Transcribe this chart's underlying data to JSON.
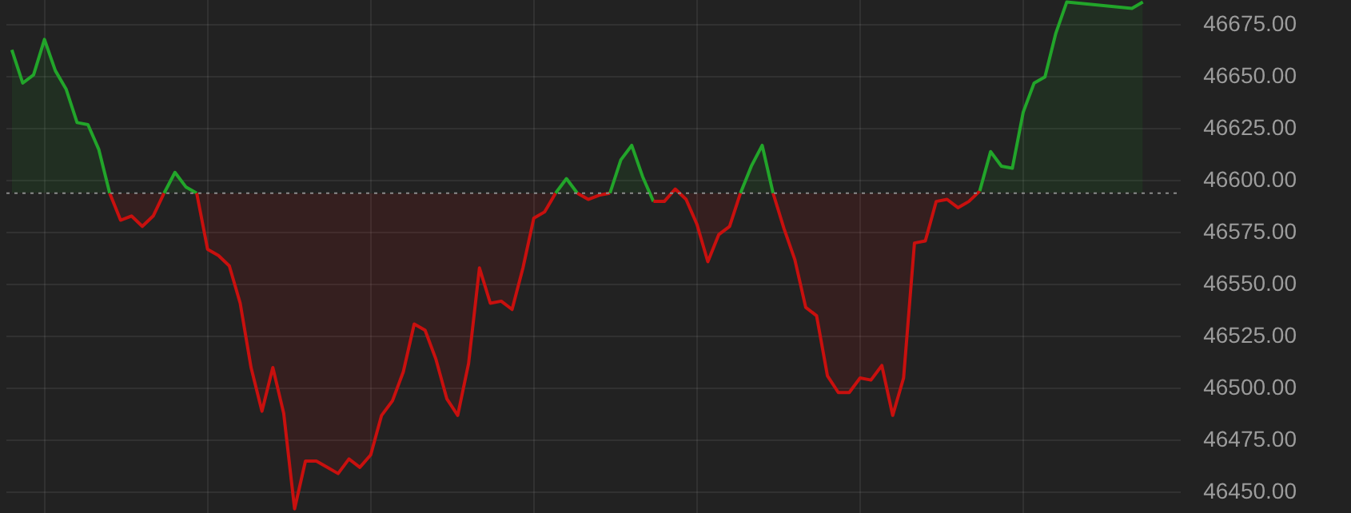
{
  "chart_data": {
    "type": "area",
    "categories": [
      null,
      null,
      null,
      null,
      null,
      null,
      null,
      null,
      null,
      null,
      null,
      null,
      null,
      null,
      null,
      null,
      null,
      null,
      null,
      null,
      null,
      null,
      null,
      null,
      null,
      null,
      null,
      null,
      null,
      null,
      null,
      null,
      null,
      null,
      null,
      null,
      null,
      null,
      null,
      null,
      null,
      null,
      null,
      null,
      null,
      null,
      null,
      null,
      null,
      null,
      null,
      null,
      null,
      null,
      null,
      null,
      null,
      null,
      null,
      null,
      null,
      null,
      null,
      null,
      null,
      null,
      null,
      null,
      null,
      null,
      null,
      null,
      null,
      null,
      null,
      null,
      null,
      null,
      null,
      null,
      null,
      null,
      null,
      null,
      null,
      null,
      null,
      null,
      null,
      null,
      null,
      null,
      null,
      null,
      null,
      null,
      null,
      null,
      null,
      null,
      null,
      null,
      null,
      null,
      null,
      null,
      null,
      null
    ],
    "series": [
      {
        "color": "#22a52a",
        "values": [
          46663,
          46647,
          46651,
          46668,
          46653,
          46644,
          46628,
          46627,
          46615,
          46594,
          46581,
          46583,
          46578,
          46583,
          46594,
          46604,
          46597,
          46594,
          46567,
          46564,
          46559,
          46541,
          46510,
          46489,
          46510,
          46488,
          46442,
          46465,
          46465,
          46462,
          46459,
          46466,
          46462,
          46468,
          46487,
          46494,
          46508,
          46531,
          46528,
          46514,
          46495,
          46487,
          46512,
          46558,
          46541,
          46542,
          46538,
          46558,
          46582,
          46585,
          46594,
          46601,
          46594,
          46591,
          46593,
          46594,
          46610,
          46617,
          46602,
          46590,
          46590,
          46596,
          46591,
          46579,
          46561,
          46574,
          46578,
          46594,
          46607,
          46617,
          46594,
          46577,
          46562,
          46539,
          46535,
          46506,
          46498,
          46498,
          46505,
          46504,
          46511,
          46487,
          46505,
          46570,
          46571,
          46590,
          46591,
          46587,
          46590,
          46595,
          46614,
          46607,
          46606,
          46633,
          46647,
          46650,
          46671,
          46686,
          null,
          null,
          null,
          null,
          null,
          46683,
          46686,
          null,
          null,
          null
        ],
        "colors": [
          "#22a52a",
          "#22a52a",
          "#22a52a",
          "#22a52a",
          "#22a52a",
          "#22a52a",
          "#22a52a",
          "#22a52a",
          "#22a52a",
          "#22a52a",
          "#c8100e",
          "#c8100e",
          "#c8100e",
          "#c8100e",
          "#22a52a",
          "#22a52a",
          "#22a52a",
          "#22a52a",
          "#c8100e",
          "#c8100e",
          "#c8100e",
          "#c8100e",
          "#c8100e",
          "#c8100e",
          "#c8100e",
          "#c8100e",
          "#c8100e",
          "#c8100e",
          "#c8100e",
          "#c8100e",
          "#c8100e",
          "#c8100e",
          "#c8100e",
          "#c8100e",
          "#c8100e",
          "#c8100e",
          "#c8100e",
          "#c8100e",
          "#c8100e",
          "#c8100e",
          "#c8100e",
          "#c8100e",
          "#c8100e",
          "#c8100e",
          "#c8100e",
          "#c8100e",
          "#c8100e",
          "#c8100e",
          "#c8100e",
          "#c8100e",
          "#22a52a",
          "#22a52a",
          "#22a52a",
          "#c8100e",
          "#c8100e",
          "#22a52a",
          "#22a52a",
          "#22a52a",
          "#22a52a",
          "#c8100e",
          "#c8100e",
          "#22a52a",
          "#c8100e",
          "#c8100e",
          "#c8100e",
          "#c8100e",
          "#c8100e",
          "#22a52a",
          "#22a52a",
          "#22a52a",
          "#22a52a",
          "#c8100e",
          "#c8100e",
          "#c8100e",
          "#c8100e",
          "#c8100e",
          "#c8100e",
          "#c8100e",
          "#c8100e",
          "#c8100e",
          "#c8100e",
          "#c8100e",
          "#c8100e",
          "#c8100e",
          "#c8100e",
          "#c8100e",
          "#c8100e",
          "#c8100e",
          "#c8100e",
          "#22a52a",
          "#22a52a",
          "#22a52a",
          "#22a52a",
          "#22a52a",
          "#22a52a",
          "#22a52a",
          "#22a52a",
          "#22a52a",
          "#22a52a",
          "#22a52a",
          "#22a52a",
          "#22a52a",
          "#22a52a",
          "#22a52a",
          "#22a52a",
          "#22a52a",
          "#22a52a",
          "#22a52a"
        ]
      }
    ],
    "ylim": [
      46440,
      46687
    ],
    "yticks": [
      {
        "value": 46450,
        "label": "46450.00"
      },
      {
        "value": 46475,
        "label": "46475.00"
      },
      {
        "value": 46500,
        "label": "46500.00"
      },
      {
        "value": 46525,
        "label": "46525.00"
      },
      {
        "value": 46550,
        "label": "46550.00"
      },
      {
        "value": 46575,
        "label": "46575.00"
      },
      {
        "value": 46600,
        "label": "46600.00"
      },
      {
        "value": 46625,
        "label": "46625.00"
      },
      {
        "value": 46650,
        "label": "46650.00"
      },
      {
        "value": 46675,
        "label": "46675.00"
      }
    ],
    "ref_lines": [
      {
        "axis": "y",
        "value": 46594,
        "color": "#8a8a8a",
        "line_style": "dotted"
      }
    ],
    "grid": true,
    "legend": false,
    "tick_labels": "y",
    "marker": "none",
    "line_style": "solid"
  }
}
